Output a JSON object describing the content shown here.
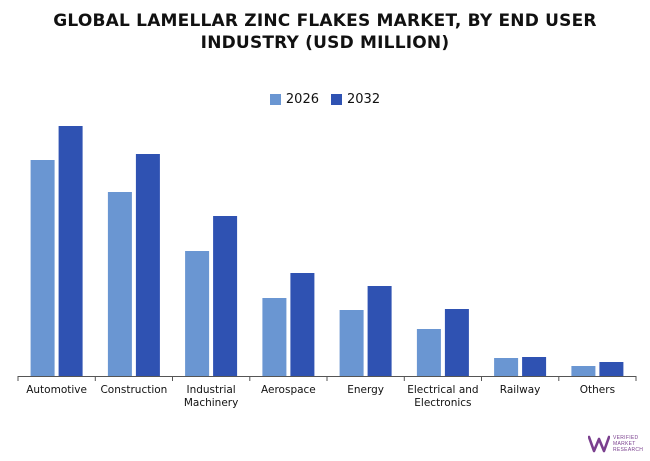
{
  "chart_data": {
    "type": "bar",
    "title": "GLOBAL LAMELLAR ZINC FLAKES MARKET, BY END USER INDUSTRY (USD MILLION)",
    "title_lines": [
      "GLOBAL LAMELLAR ZINC FLAKES MARKET, BY END USER",
      "INDUSTRY (USD MILLION)"
    ],
    "categories": [
      [
        "Automotive"
      ],
      [
        "Construction"
      ],
      [
        "Industrial",
        "Machinery"
      ],
      [
        "Aerospace"
      ],
      [
        "Energy"
      ],
      [
        "Electrical and",
        "Electronics"
      ],
      [
        "Railway"
      ],
      [
        "Others"
      ]
    ],
    "series": [
      {
        "name": "2026",
        "color": "#6a96d2",
        "values": [
          216,
          184,
          125,
          78,
          66,
          47,
          18,
          10
        ]
      },
      {
        "name": "2032",
        "color": "#2f52b2",
        "values": [
          250,
          222,
          160,
          103,
          90,
          67,
          19,
          14
        ]
      }
    ],
    "ylim": [
      0,
      260
    ],
    "legend_position": "top-center",
    "grid": false,
    "axis_color": "#555555"
  },
  "logo": {
    "lines": [
      "VERIFIED",
      "MARKET",
      "RESEARCH"
    ],
    "color": "#7a3f8e"
  }
}
